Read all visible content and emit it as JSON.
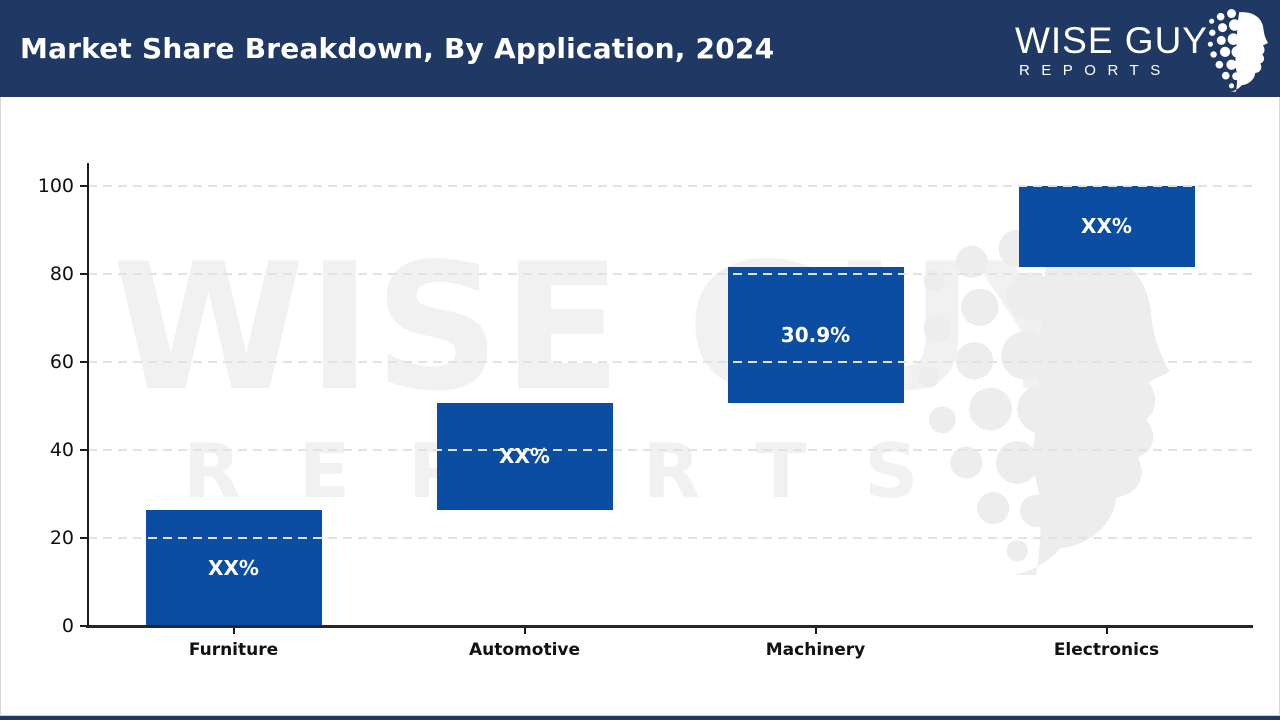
{
  "header": {
    "title": "Market Share Breakdown, By Application, 2024"
  },
  "brand": {
    "line1": "WISE GUY",
    "line2": "REPORTS"
  },
  "watermark": {
    "line1": "WISE GUY",
    "line2": "REPORTS"
  },
  "colors": {
    "header_bg": "#1f3864",
    "footer_bg": "#1f3864",
    "bar": "#0b4da2",
    "grid": "#e2e2e2",
    "axis": "#1a1a1a",
    "watermark": "#f1f1f1",
    "label_on_bar": "#ffffff"
  },
  "chart_data": {
    "type": "bar",
    "subtype": "waterfall",
    "title": "Market Share Breakdown, By Application, 2024",
    "xlabel": "",
    "ylabel": "",
    "categories": [
      "Furniture",
      "Automotive",
      "Machinery",
      "Electronics"
    ],
    "segments": [
      {
        "category": "Furniture",
        "start": 0,
        "end": 26.4,
        "value": 26.4,
        "label": "XX%"
      },
      {
        "category": "Automotive",
        "start": 26.4,
        "end": 50.7,
        "value": 24.3,
        "label": "XX%"
      },
      {
        "category": "Machinery",
        "start": 50.7,
        "end": 81.6,
        "value": 30.9,
        "label": "30.9%"
      },
      {
        "category": "Electronics",
        "start": 81.6,
        "end": 100,
        "value": 18.4,
        "label": "XX%"
      }
    ],
    "y_ticks": [
      0,
      20,
      40,
      60,
      80,
      100
    ],
    "ylim": [
      0,
      100
    ],
    "grid": true,
    "grid_style": "dashed",
    "grid_over_bars": true,
    "legend": false
  }
}
